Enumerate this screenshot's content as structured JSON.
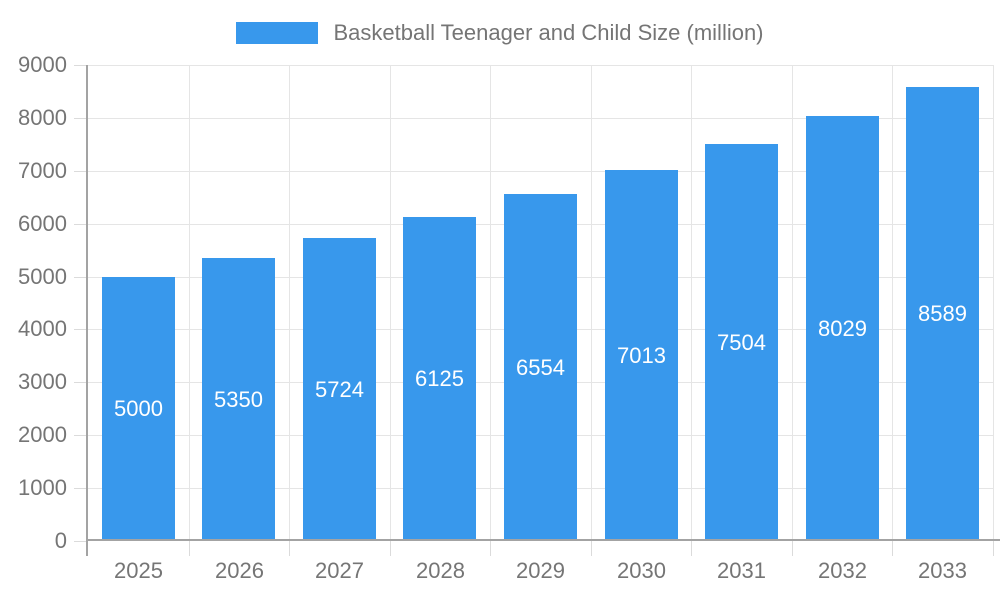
{
  "chart_data": {
    "type": "bar",
    "title": "Basketball Teenager and Child Size (million)",
    "categories": [
      "2025",
      "2026",
      "2027",
      "2028",
      "2029",
      "2030",
      "2031",
      "2032",
      "2033"
    ],
    "values": [
      5000,
      5350,
      5724,
      6125,
      6554,
      7013,
      7504,
      8029,
      8589
    ],
    "xlabel": "",
    "ylabel": "",
    "ylim": [
      0,
      9000
    ],
    "ytick_step": 1000,
    "grid": true,
    "legend_position": "top",
    "bar_labels_inside": true,
    "colors": {
      "bar": "#3898EC",
      "bar_label": "#FFFFFF",
      "axis_text": "#757575",
      "axis_line": "#A3A3A3",
      "gridline": "#E5E5E5",
      "tick": "#DBDBDB",
      "background": "#FFFFFF"
    }
  }
}
